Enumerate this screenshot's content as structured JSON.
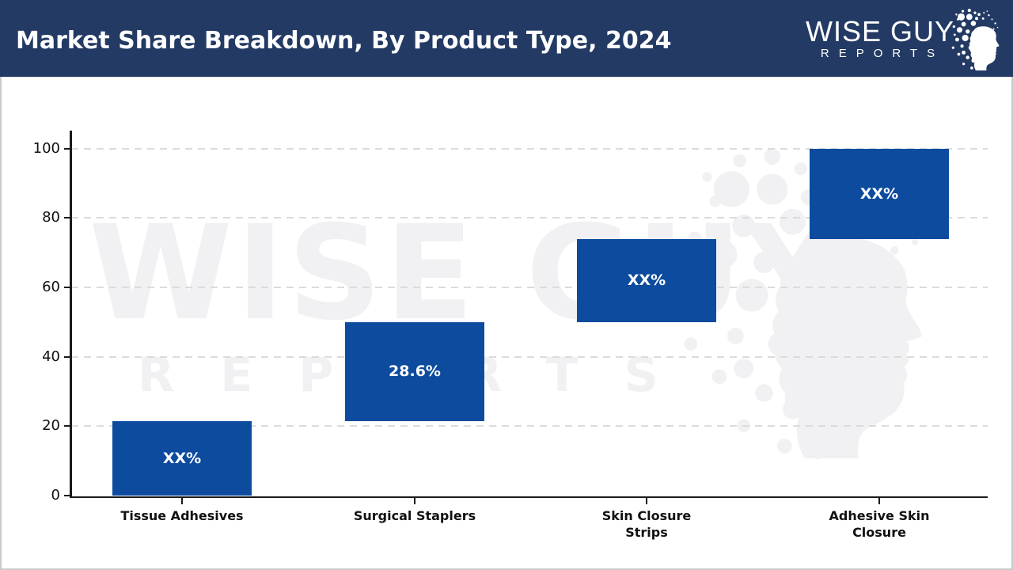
{
  "header": {
    "title": "Market Share Breakdown, By Product Type, 2024",
    "logo": {
      "line1": "WISE GUY",
      "line2": "REPORTS"
    }
  },
  "watermark": {
    "line1": "WISE GUY",
    "line2": "REPORTS"
  },
  "chart_data": {
    "type": "bar",
    "subtype": "floating-segment-waterfall",
    "title": "Market Share Breakdown, By Product Type, 2024",
    "categories": [
      "Tissue Adhesives",
      "Surgical Staplers",
      "Skin Closure\nStrips",
      "Adhesive Skin\nClosure"
    ],
    "segments": [
      {
        "category": "Tissue Adhesives",
        "start": 0,
        "end": 21.4,
        "label": "XX%"
      },
      {
        "category": "Surgical Staplers",
        "start": 21.4,
        "end": 50,
        "label": "28.6%"
      },
      {
        "category": "Skin Closure Strips",
        "start": 50,
        "end": 74,
        "label": "XX%"
      },
      {
        "category": "Adhesive Skin Closure",
        "start": 74,
        "end": 100,
        "label": "XX%"
      }
    ],
    "ylim": [
      0,
      100
    ],
    "yticks": [
      0,
      20,
      40,
      60,
      80,
      100
    ],
    "xlabel": "",
    "ylabel": "",
    "grid": "horizontal-dashed",
    "legend": "none",
    "colors": {
      "bar": "#0c4b9e",
      "header_bg": "#233a64",
      "grid": "#dbdbdb",
      "axis": "#1a1a1a",
      "bar_label": "#ffffff",
      "watermark": "#f1f1f3"
    }
  }
}
